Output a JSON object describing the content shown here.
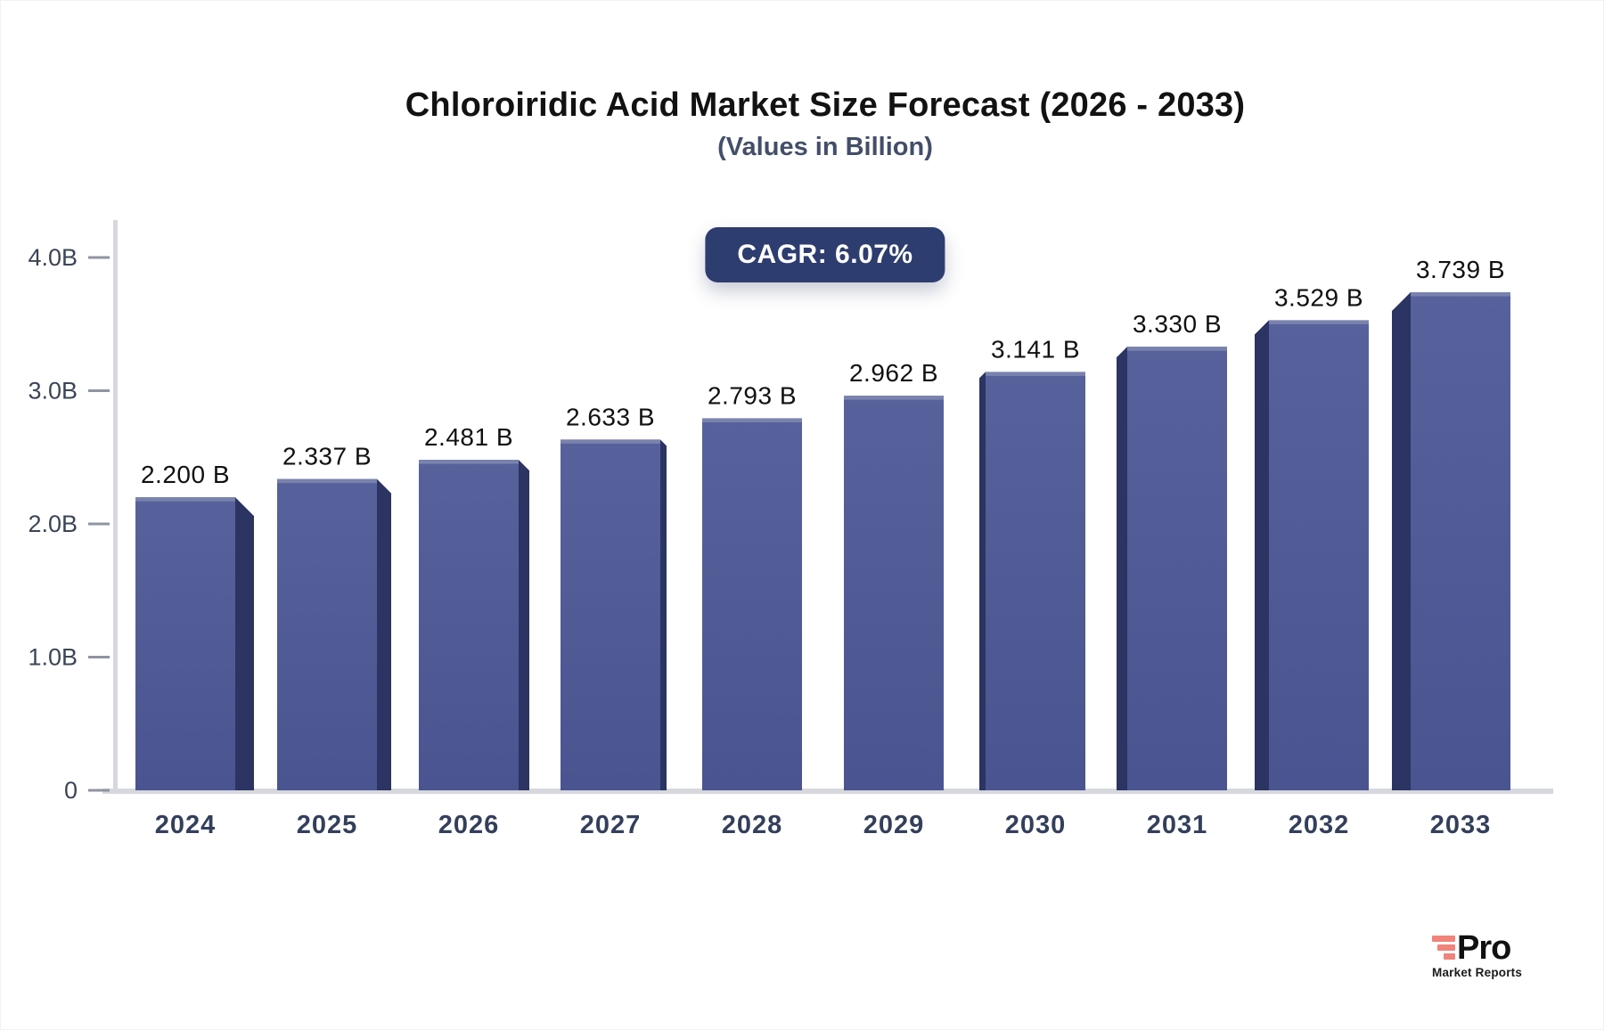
{
  "header": {
    "title": "Chloroiridic Acid Market Size Forecast (2026 - 2033)",
    "subtitle": "(Values in Billion)",
    "cagr_badge": "CAGR: 6.07%"
  },
  "chart_data": {
    "type": "bar",
    "title": "Chloroiridic Acid Market Size Forecast (2026 - 2033)",
    "subtitle": "(Values in Billion)",
    "cagr": "6.07%",
    "categories": [
      "2024",
      "2025",
      "2026",
      "2027",
      "2028",
      "2029",
      "2030",
      "2031",
      "2032",
      "2033"
    ],
    "values": [
      2.2,
      2.337,
      2.481,
      2.633,
      2.793,
      2.962,
      3.141,
      3.33,
      3.529,
      3.739
    ],
    "bar_labels": [
      "2.200 B",
      "2.337 B",
      "2.481 B",
      "2.633 B",
      "2.793 B",
      "2.962 B",
      "3.141 B",
      "3.330 B",
      "3.529 B",
      "3.739 B"
    ],
    "y_ticks": [
      {
        "value": 0,
        "label": "0"
      },
      {
        "value": 1,
        "label": "1.0B"
      },
      {
        "value": 2,
        "label": "2.0B"
      },
      {
        "value": 3,
        "label": "3.0B"
      },
      {
        "value": 4,
        "label": "4.0B"
      }
    ],
    "ylim": [
      0,
      4
    ],
    "xlabel": "",
    "ylabel": "",
    "grid": false,
    "legend": false,
    "style": "3d-bars, perspective vanishing point at chart center"
  },
  "branding": {
    "logo_text": "Pro",
    "logo_subtext": "Market Reports"
  },
  "colors": {
    "bar_face_top": "#57619b",
    "bar_face_bottom": "#4a5490",
    "bar_side": "#2b3462",
    "bar_top_highlight": "#7983ad",
    "badge_bg": "#2e3d6f",
    "badge_text": "#ffffff",
    "axis": "#d6d8dd",
    "tick_dash": "#8e94a2",
    "tick_label": "#3c4557",
    "year_label": "#333f5b",
    "value_label": "#111111",
    "title": "#121212",
    "subtitle": "#434e69",
    "logo_accent": "#f0837a"
  }
}
